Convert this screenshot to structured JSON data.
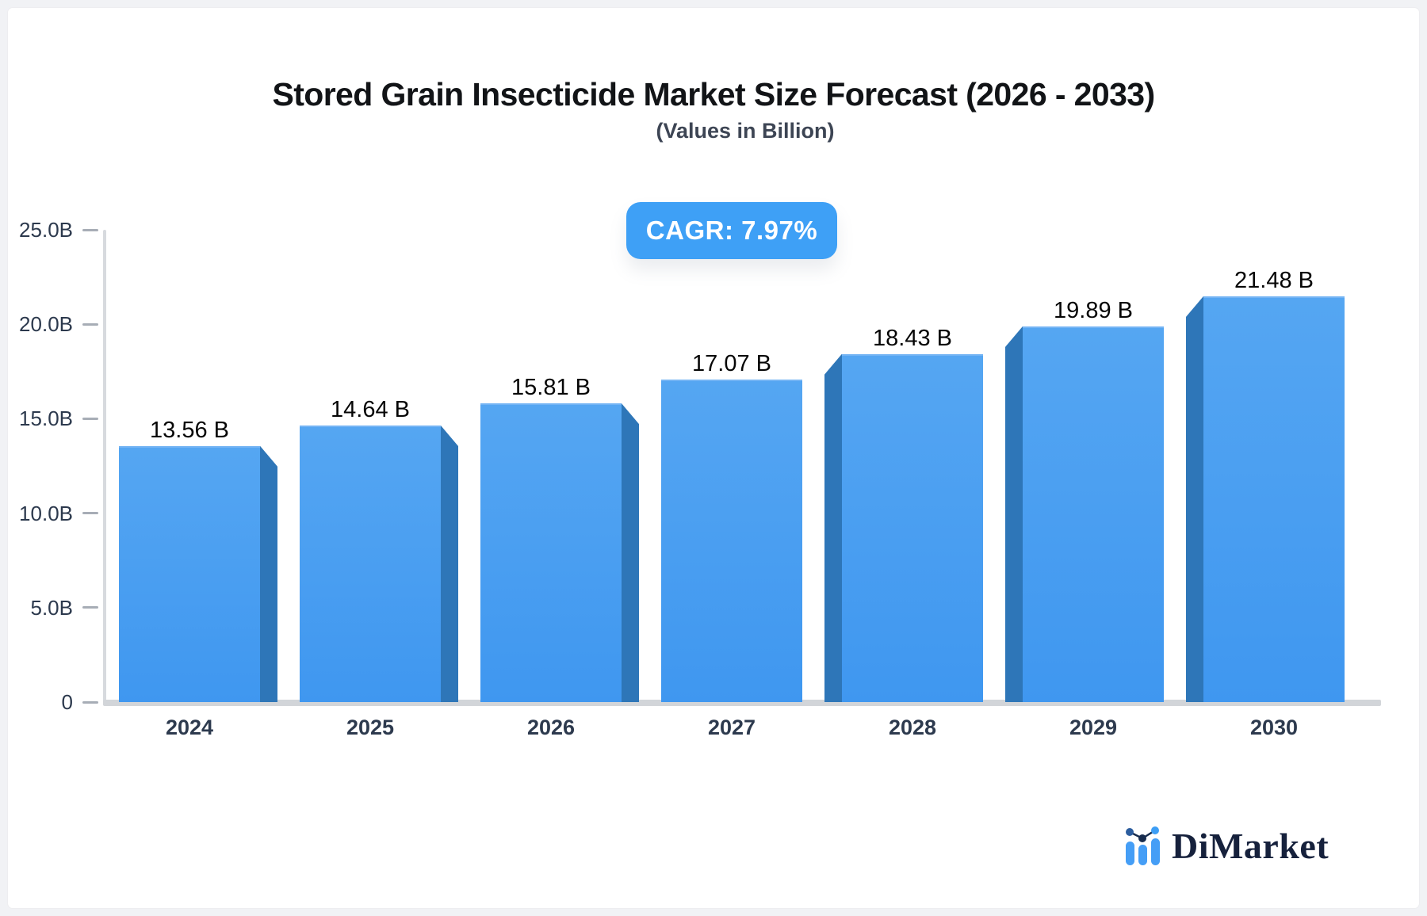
{
  "header": {
    "title": "Stored Grain Insecticide Market Size Forecast (2026 - 2033)",
    "subtitle": "(Values in Billion)"
  },
  "badge": {
    "label": "CAGR: 7.97%"
  },
  "chart_data": {
    "type": "bar",
    "categories": [
      "2024",
      "2025",
      "2026",
      "2027",
      "2028",
      "2029",
      "2030"
    ],
    "values": [
      13.56,
      14.64,
      15.81,
      17.07,
      18.43,
      19.89,
      21.48
    ],
    "bar_labels": [
      "13.56 B",
      "14.64 B",
      "15.81 B",
      "17.07 B",
      "18.43 B",
      "19.89 B",
      "21.48 B"
    ],
    "title": "Stored Grain Insecticide Market Size Forecast (2026 - 2033)",
    "xlabel": "",
    "ylabel": "",
    "ylim": [
      0,
      25
    ],
    "ytick_labels": [
      "25.0B",
      "20.0B",
      "15.0B",
      "10.0B",
      "5.0B",
      "0"
    ],
    "ytick_values": [
      25,
      20,
      15,
      10,
      5,
      0
    ],
    "grid": false,
    "legend": false
  },
  "colors": {
    "bar_top": "#55a6f2",
    "bar_bottom": "#3f97f0",
    "bar_side": "#2e76b8",
    "badge_bg": "#3ea0f6",
    "badge_text": "#ffffff",
    "axis_text": "#2c394d",
    "value_text": "#060606",
    "baseline": "#d2d5d9",
    "logo_navy": "#16213c",
    "logo_blue": "#459ef6"
  },
  "logo": {
    "text": "DiMarket",
    "icon": "mini-bar-chart-icon"
  }
}
